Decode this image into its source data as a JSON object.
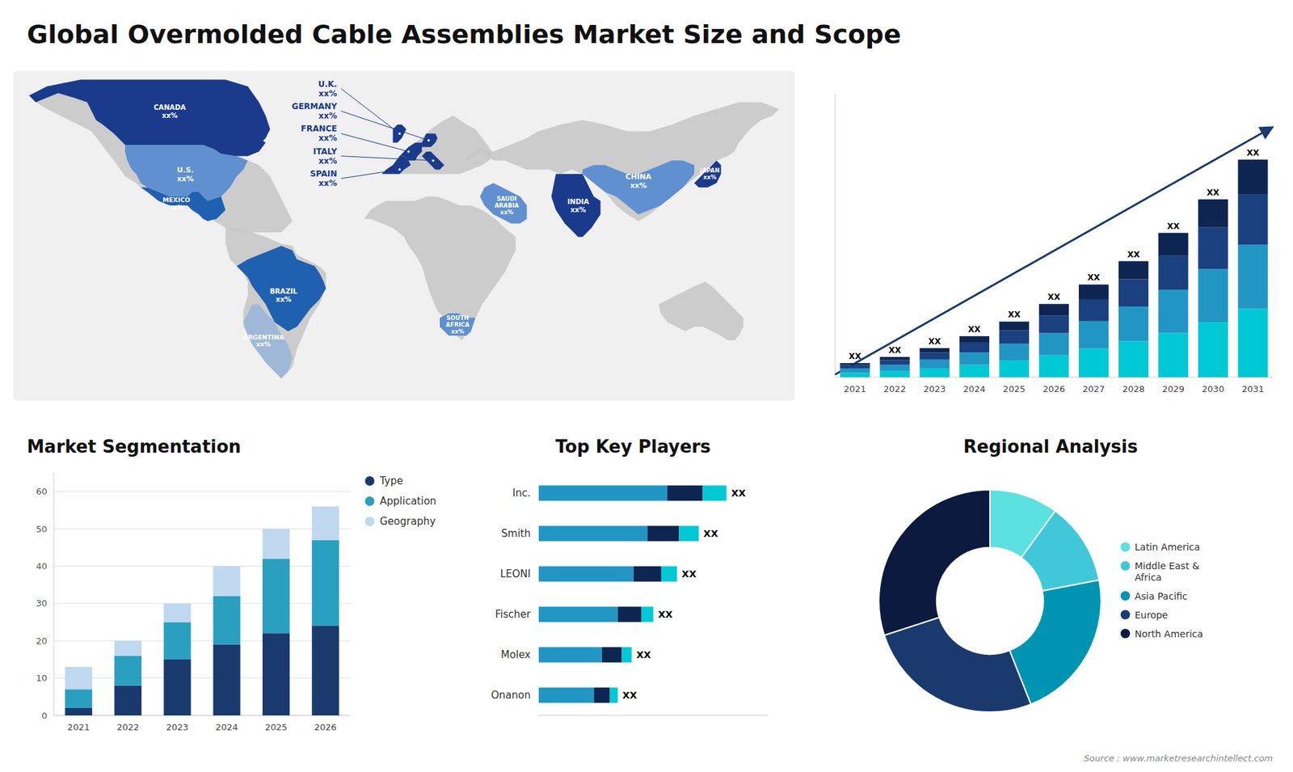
{
  "title": "Global Overmolded Cable Assemblies Market Size and Scope",
  "annotations": [
    "Source : www.marketresearchintellect.com"
  ],
  "chart_data": [
    {
      "type": "map",
      "categories": [
        "U.S.\nxx%",
        "CANADA\nxx%",
        "MEXICO\nxx%",
        "BRAZIL\nxx%",
        "ARGENTINA\nxx%",
        "U.K.\nxx%",
        "FRANCE\nxx%",
        "GERMANY\nxx%",
        "SPAIN\nxx%",
        "ITALY\nxx%",
        "SAUDI\nARABIA\nxx%",
        "SOUTH\nAFRICA\nxx%",
        "CHINA\nxx%",
        "INDIA\nxx%",
        "JAPAN\nxx%"
      ],
      "colors": [
        "#6090d0",
        "#1a3a8c",
        "#2060b0",
        "#2060b0",
        "#a0b8d8",
        "#1a3a8c",
        "#1a3a8c",
        "#1a3a8c",
        "#1a3a8c",
        "#1a3a8c",
        "#6090d0",
        "#6090d0",
        "#6090d0",
        "#1a3a8c",
        "#1a3a8c"
      ]
    },
    {
      "type": "bar",
      "stacked": true,
      "categories": [
        "2021",
        "2022",
        "2023",
        "2024",
        "2025",
        "2026",
        "2027",
        "2028",
        "2029",
        "2030",
        "2031"
      ],
      "series": [
        {
          "color": "#00c8d4",
          "values": [
            1.0,
            1.4,
            2.0,
            2.8,
            3.8,
            5.0,
            6.5,
            8.2,
            10.0,
            12.5,
            15.5
          ]
        },
        {
          "color": "#2196c4",
          "values": [
            1.0,
            1.4,
            2.0,
            2.8,
            3.8,
            5.0,
            6.2,
            7.8,
            9.8,
            12.0,
            14.5
          ]
        },
        {
          "color": "#1a4080",
          "values": [
            0.8,
            1.1,
            1.6,
            2.2,
            3.0,
            4.0,
            5.0,
            6.2,
            7.8,
            9.5,
            11.5
          ]
        },
        {
          "color": "#0d2550",
          "values": [
            0.4,
            0.7,
            1.0,
            1.5,
            2.0,
            2.6,
            3.3,
            4.1,
            5.1,
            6.3,
            7.8
          ]
        }
      ],
      "ylim": [
        0,
        64.09
      ],
      "tick_labels": "x",
      "annotations": [
        "XX",
        "XX",
        "XX",
        "XX",
        "XX",
        "XX",
        "XX",
        "XX",
        "XX",
        "XX",
        "XX"
      ]
    },
    {
      "type": "bar",
      "title": "Market Segmentation",
      "stacked": true,
      "categories": [
        "2021",
        "2022",
        "2023",
        "2024",
        "2025",
        "2026"
      ],
      "series": [
        {
          "name": "Type",
          "color": "#1a3a6e",
          "values": [
            2,
            8,
            15,
            19,
            22,
            24
          ]
        },
        {
          "name": "Application",
          "color": "#2a9fbf",
          "values": [
            5,
            8,
            10,
            13,
            20,
            23
          ]
        },
        {
          "name": "Geography",
          "color": "#c0d8f0",
          "values": [
            6,
            4,
            5,
            8,
            8,
            9
          ]
        }
      ],
      "ylim": [
        0,
        65
      ],
      "yticks": [
        0,
        10,
        20,
        30,
        40,
        50,
        60
      ],
      "grid": true,
      "legend": "right"
    },
    {
      "type": "bar",
      "title": "Top Key Players",
      "orientation": "horizontal",
      "stacked": true,
      "categories": [
        "Inc.",
        "Smith",
        "LEONI",
        "Fischer",
        "Molex",
        "Onanon"
      ],
      "series": [
        {
          "color": "#2196c4",
          "values": [
            6.5,
            5.5,
            4.8,
            4.0,
            3.2,
            2.8
          ]
        },
        {
          "color": "#0d2550",
          "values": [
            1.8,
            1.6,
            1.4,
            1.2,
            1.0,
            0.8
          ]
        },
        {
          "color": "#00c8d4",
          "values": [
            1.2,
            1.0,
            0.8,
            0.6,
            0.5,
            0.4
          ]
        }
      ],
      "xlim": [
        0,
        11.59
      ],
      "tick_labels": "y",
      "annotations": [
        "XX",
        "XX",
        "XX",
        "XX",
        "XX",
        "XX"
      ]
    },
    {
      "type": "donut",
      "title": "Regional Analysis",
      "categories": [
        "Latin America",
        "Middle East &\nAfrica",
        "Asia Pacific",
        "Europe",
        "North America"
      ],
      "values": [
        10,
        12,
        22,
        26,
        30
      ],
      "colors": [
        "#5ce0e0",
        "#40c8d8",
        "#0094b3",
        "#1a3a6e",
        "#0d1a40"
      ],
      "legend": "right"
    }
  ]
}
